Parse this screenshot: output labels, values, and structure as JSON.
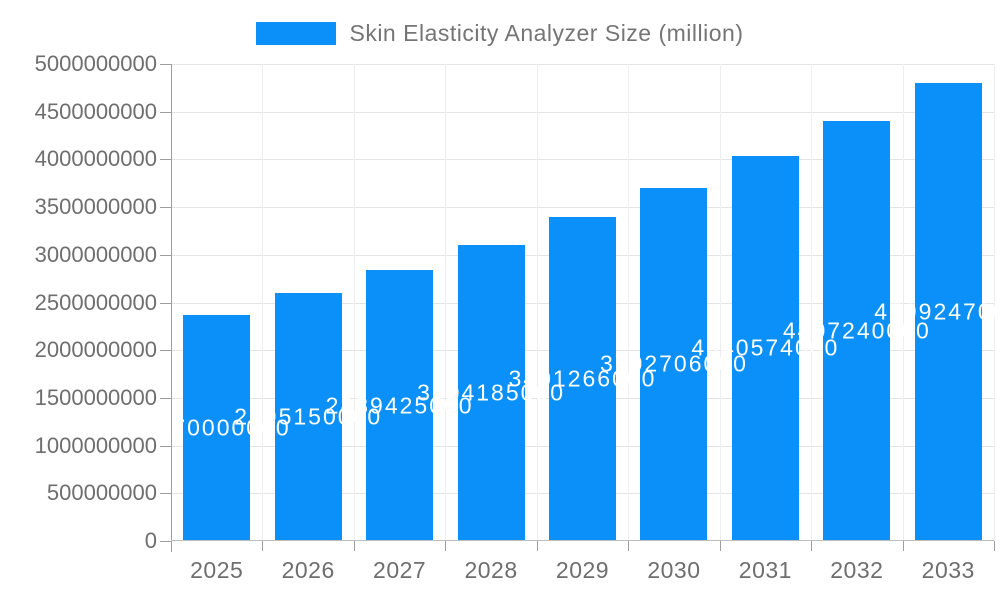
{
  "chart_data": {
    "type": "bar",
    "title": "Skin Elasticity Analyzer Size (million)",
    "legend": {
      "label": "Skin Elasticity Analyzer Size (million)",
      "position": "top"
    },
    "categories": [
      "2025",
      "2026",
      "2027",
      "2028",
      "2029",
      "2030",
      "2031",
      "2032",
      "2033"
    ],
    "values": [
      2370000000,
      2595150000,
      2839425000,
      3104185000,
      3401266000,
      3702706000,
      4040574000,
      4407240000,
      4799247000
    ],
    "value_labels": [
      "2370000000",
      "2595150000",
      "2839425000",
      "3104185000",
      "3401266000",
      "3702706000",
      "4040574000",
      "4407240000",
      "4799247000"
    ],
    "xlabel": "",
    "ylabel": "",
    "ylim": [
      0,
      5000000000
    ],
    "ytick_step": 500000000,
    "ytick_labels_top_to_bottom": [
      "5000000000",
      "4500000000",
      "4000000000",
      "3500000000",
      "3000000000",
      "2500000000",
      "2000000000",
      "1500000000",
      "1000000000",
      "500000000",
      "0"
    ],
    "grid": true,
    "colors": {
      "bar": "#0a90f8",
      "data_label": "#ffffff",
      "axis_text": "#6e6e6e",
      "title_text": "#757575",
      "gridline": "#e4e4e4",
      "gridline_vertical": "#ededed",
      "axis_line": "#9e9e9e"
    }
  }
}
